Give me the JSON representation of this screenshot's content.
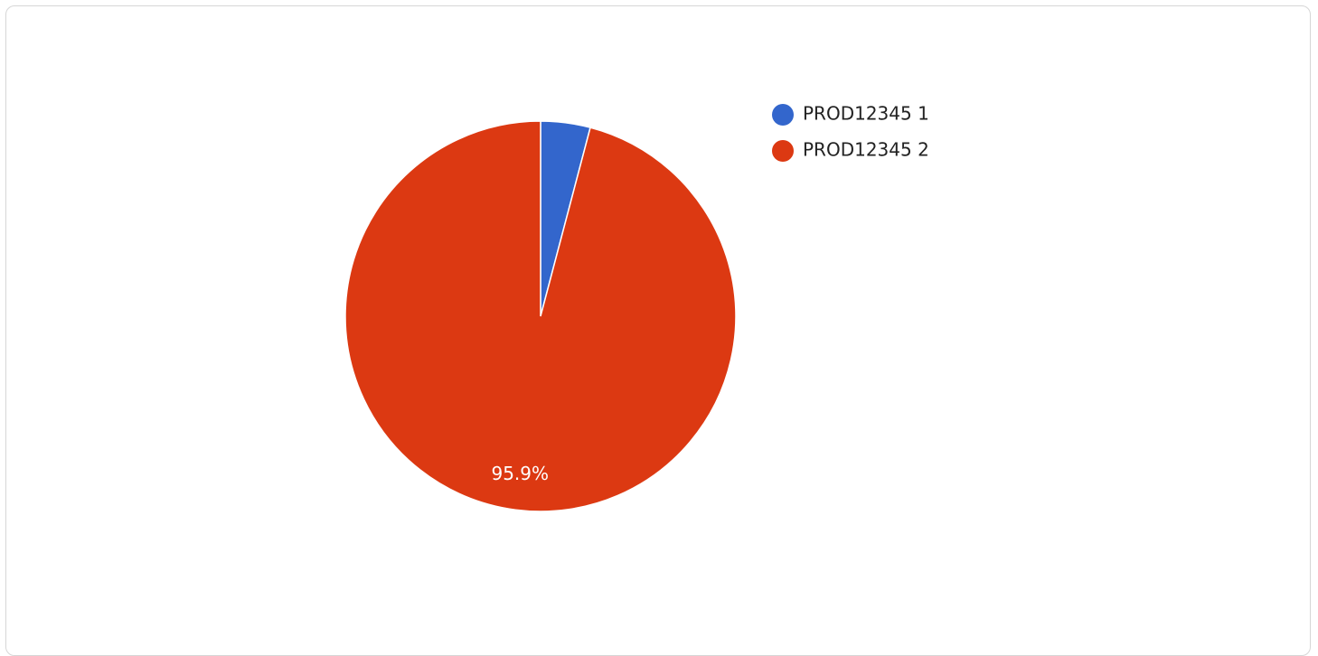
{
  "chart_data": {
    "type": "pie",
    "categories": [
      "PROD12345 1",
      "PROD12345 2"
    ],
    "values": [
      4.1,
      95.9
    ],
    "colors": [
      "#3366cc",
      "#dc3912"
    ],
    "data_labels": [
      "",
      "95.9%"
    ],
    "legend_position": "right",
    "start_angle": "top",
    "direction": "clockwise"
  }
}
